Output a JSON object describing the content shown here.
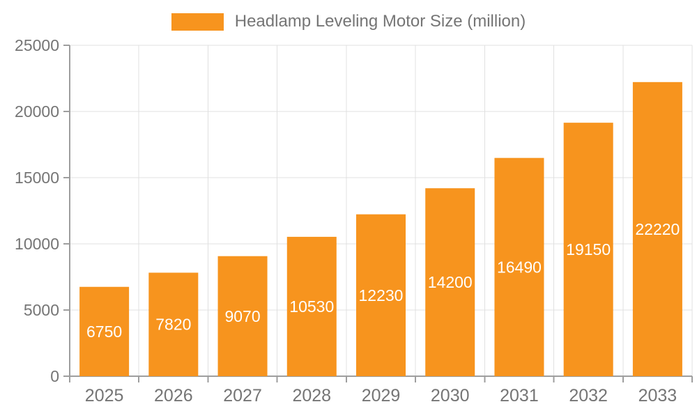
{
  "legend": {
    "label": "Headlamp Leveling Motor Size (million)",
    "swatch_color": "#F7941E"
  },
  "chart_data": {
    "type": "bar",
    "title": "Headlamp Leveling Motor Size (million)",
    "categories": [
      "2025",
      "2026",
      "2027",
      "2028",
      "2029",
      "2030",
      "2031",
      "2032",
      "2033"
    ],
    "values": [
      6750,
      7820,
      9070,
      10530,
      12230,
      14200,
      16490,
      19150,
      22220
    ],
    "series": [
      {
        "name": "Headlamp Leveling Motor Size (million)",
        "values": [
          6750,
          7820,
          9070,
          10530,
          12230,
          14200,
          16490,
          19150,
          22220
        ]
      }
    ],
    "xlabel": "",
    "ylabel": "",
    "ylim": [
      0,
      25000
    ],
    "yticks": [
      0,
      5000,
      10000,
      15000,
      20000,
      25000
    ],
    "grid": true,
    "legend_position": "top-center",
    "value_labels_position": "inside-center"
  },
  "colors": {
    "bar": "#F7941E",
    "axis": "#9E9E9E",
    "grid": "#E0E0E0",
    "tick_text": "#757575",
    "value_text": "#FFFFFF",
    "background": "#FFFFFF"
  }
}
